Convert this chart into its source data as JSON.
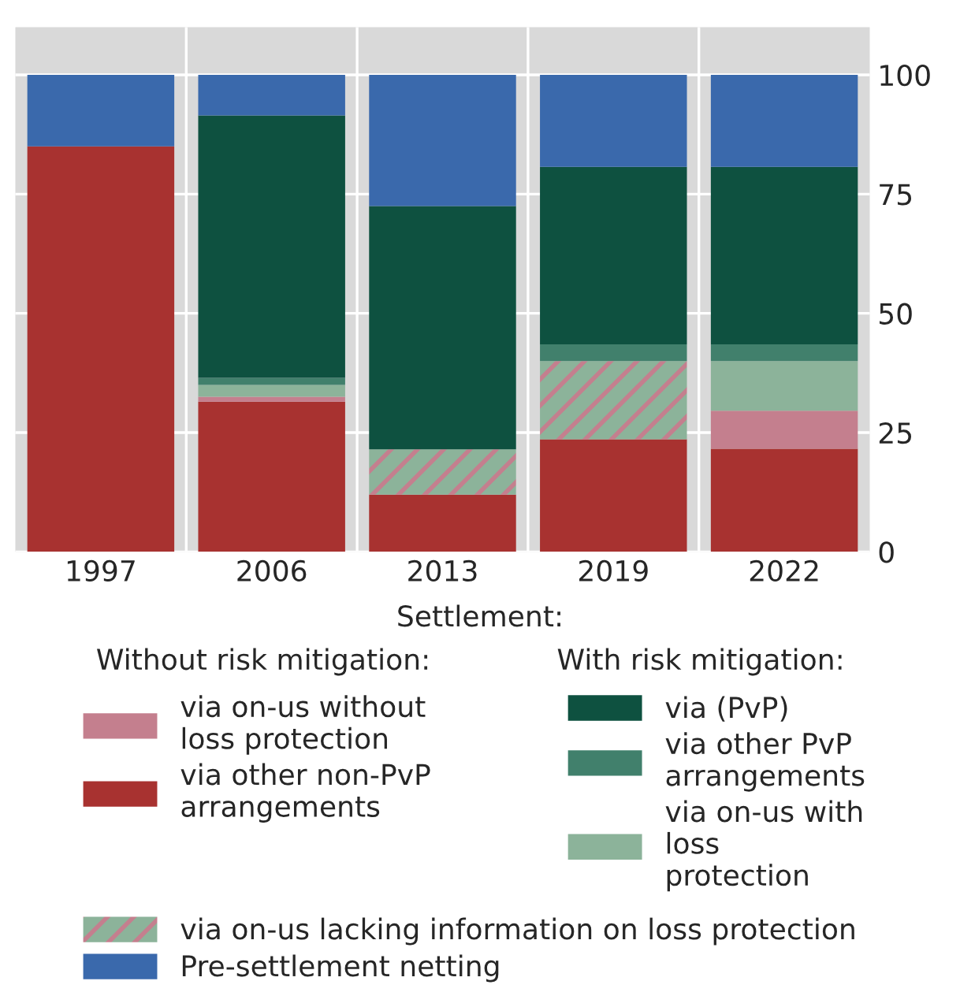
{
  "chart_data": {
    "type": "bar",
    "stacked": true,
    "legend_title": "Settlement:",
    "categories": [
      "1997",
      "2006",
      "2013",
      "2019",
      "2022"
    ],
    "series": [
      {
        "name": "via other non-PvP arrangements",
        "color": "#a83230",
        "values": [
          85,
          31.5,
          12,
          23.6,
          21.6
        ]
      },
      {
        "name": "via on-us without loss protection",
        "color": "#c47f8e",
        "values": [
          0,
          1,
          0,
          0,
          8
        ]
      },
      {
        "name": "via on-us lacking information on loss protection",
        "color": "#8cb39a",
        "values": [
          0,
          0,
          9.5,
          16.4,
          0
        ]
      },
      {
        "name": "via on-us with loss protection",
        "color": "#8cb39a",
        "values": [
          0,
          2.5,
          0,
          0,
          10.4
        ]
      },
      {
        "name": "via other PvP arrangements",
        "color": "#41806c",
        "values": [
          0,
          1.5,
          0,
          3.5,
          3.5
        ]
      },
      {
        "name": "via (PvP)",
        "color": "#0e5140",
        "values": [
          0,
          55,
          51,
          37.2,
          37.2
        ]
      },
      {
        "name": "Pre-settlement netting",
        "color": "#3a69ac",
        "values": [
          15,
          8.5,
          27.5,
          19.3,
          19.3
        ]
      }
    ],
    "ylim": [
      0,
      110
    ],
    "yticks": [
      0,
      25,
      50,
      75,
      100
    ],
    "grid": true,
    "legend": "bottom",
    "annotations": [
      "Without risk mitigation:",
      "With risk mitigation:"
    ]
  }
}
